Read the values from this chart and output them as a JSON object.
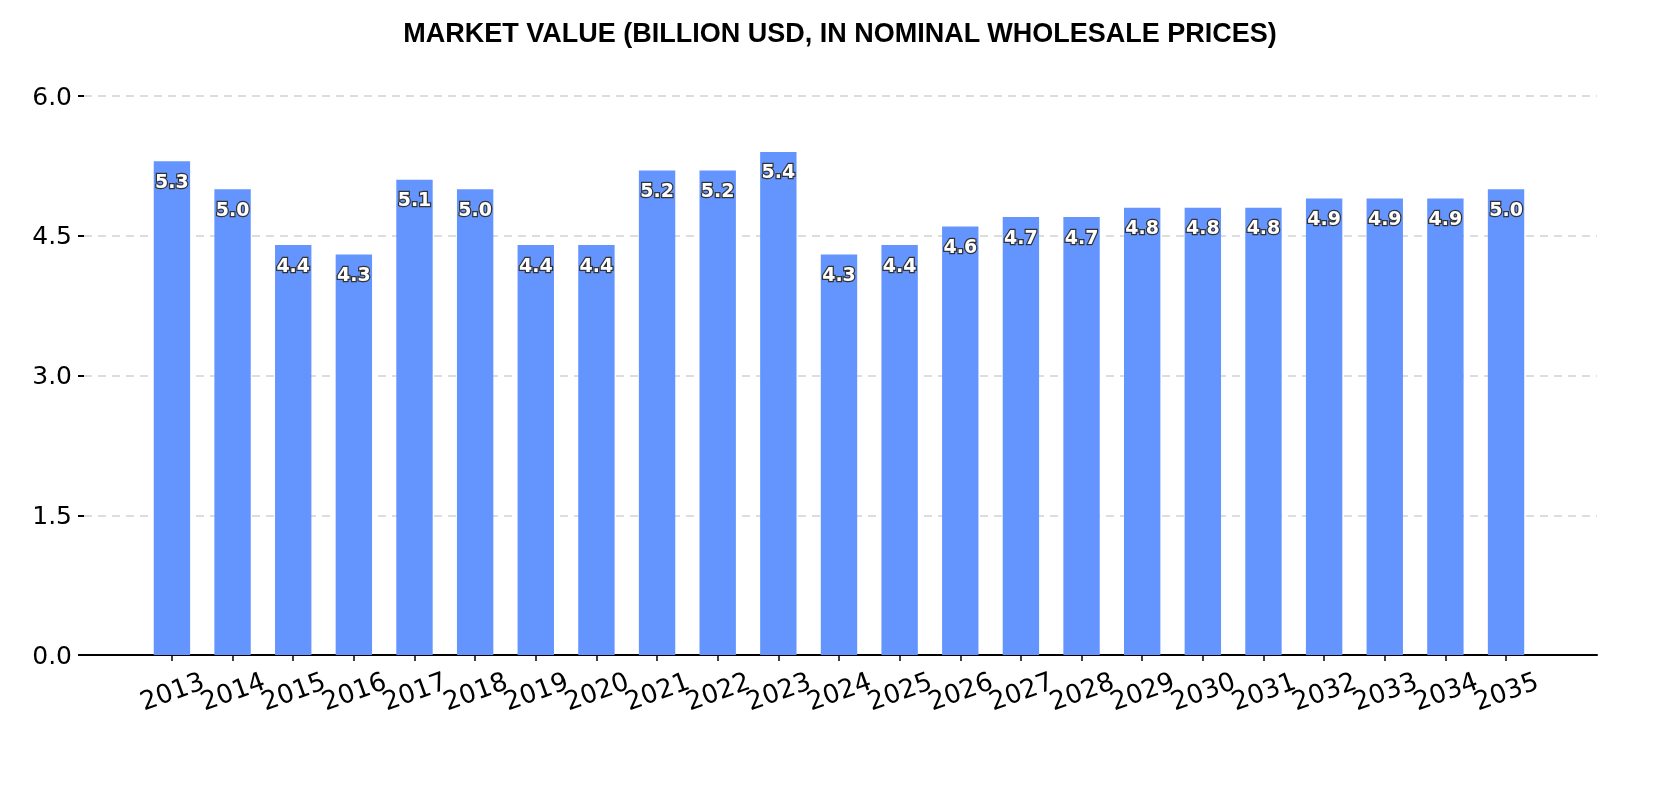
{
  "chart_data": {
    "type": "bar",
    "title": "MARKET VALUE (BILLION USD, IN NOMINAL WHOLESALE PRICES)",
    "categories": [
      "2013",
      "2014",
      "2015",
      "2016",
      "2017",
      "2018",
      "2019",
      "2020",
      "2021",
      "2022",
      "2023",
      "2024",
      "2025",
      "2026",
      "2027",
      "2028",
      "2029",
      "2030",
      "2031",
      "2032",
      "2033",
      "2034",
      "2035"
    ],
    "values": [
      5.3,
      5.0,
      4.4,
      4.3,
      5.1,
      5.0,
      4.4,
      4.4,
      5.2,
      5.2,
      5.4,
      4.3,
      4.4,
      4.6,
      4.7,
      4.7,
      4.8,
      4.8,
      4.8,
      4.9,
      4.9,
      4.9,
      5.0
    ],
    "value_labels": [
      "5.3",
      "5.0",
      "4.4",
      "4.3",
      "5.1",
      "5.0",
      "4.4",
      "4.4",
      "5.2",
      "5.2",
      "5.4",
      "4.3",
      "4.4",
      "4.6",
      "4.7",
      "4.7",
      "4.8",
      "4.8",
      "4.8",
      "4.9",
      "4.9",
      "4.9",
      "5.0"
    ],
    "color": "#6495ff",
    "ylim": [
      0,
      6
    ],
    "yticks": [
      {
        "value": 0,
        "label": "0.0"
      },
      1.5,
      {
        "value": 3,
        "label": "3.0"
      },
      4.5,
      {
        "value": 6,
        "label": "6.0"
      }
    ],
    "grid": "y"
  }
}
